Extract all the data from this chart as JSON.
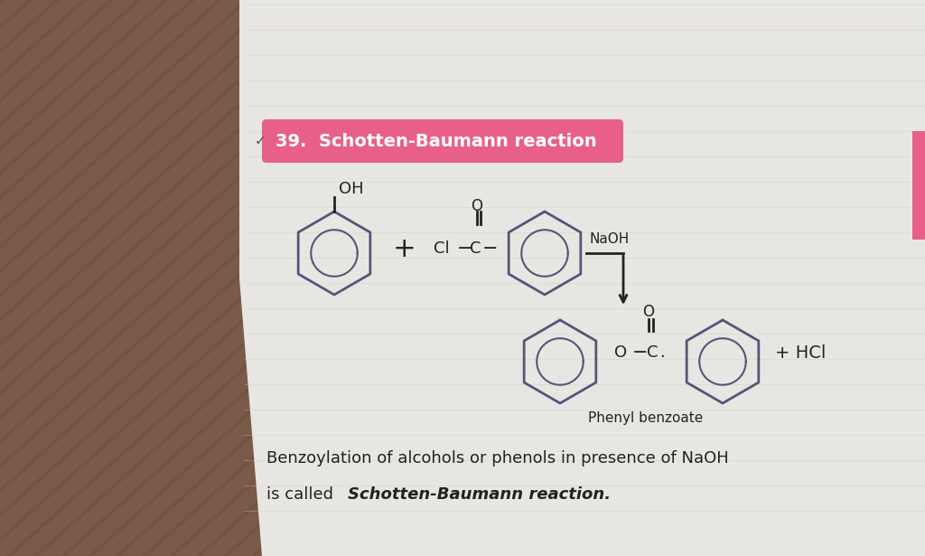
{
  "bg_color": "#7a5a48",
  "page_color": "#e8e6e2",
  "title_text": "39.  Schotten-Baumann reaction",
  "title_bg": "#e8608a",
  "title_fg": "#ffffff",
  "naoh": "NaOH",
  "hcl": "+ HCl",
  "phenyl_benzoate": "Phenyl benzoate",
  "line1": "Benzoylation of alcohols or phenols in presence of NaOH",
  "line2": "is called ",
  "line2_italic": "Schotten-Baumann reaction.",
  "struct_color": "#555577",
  "text_color": "#222222"
}
